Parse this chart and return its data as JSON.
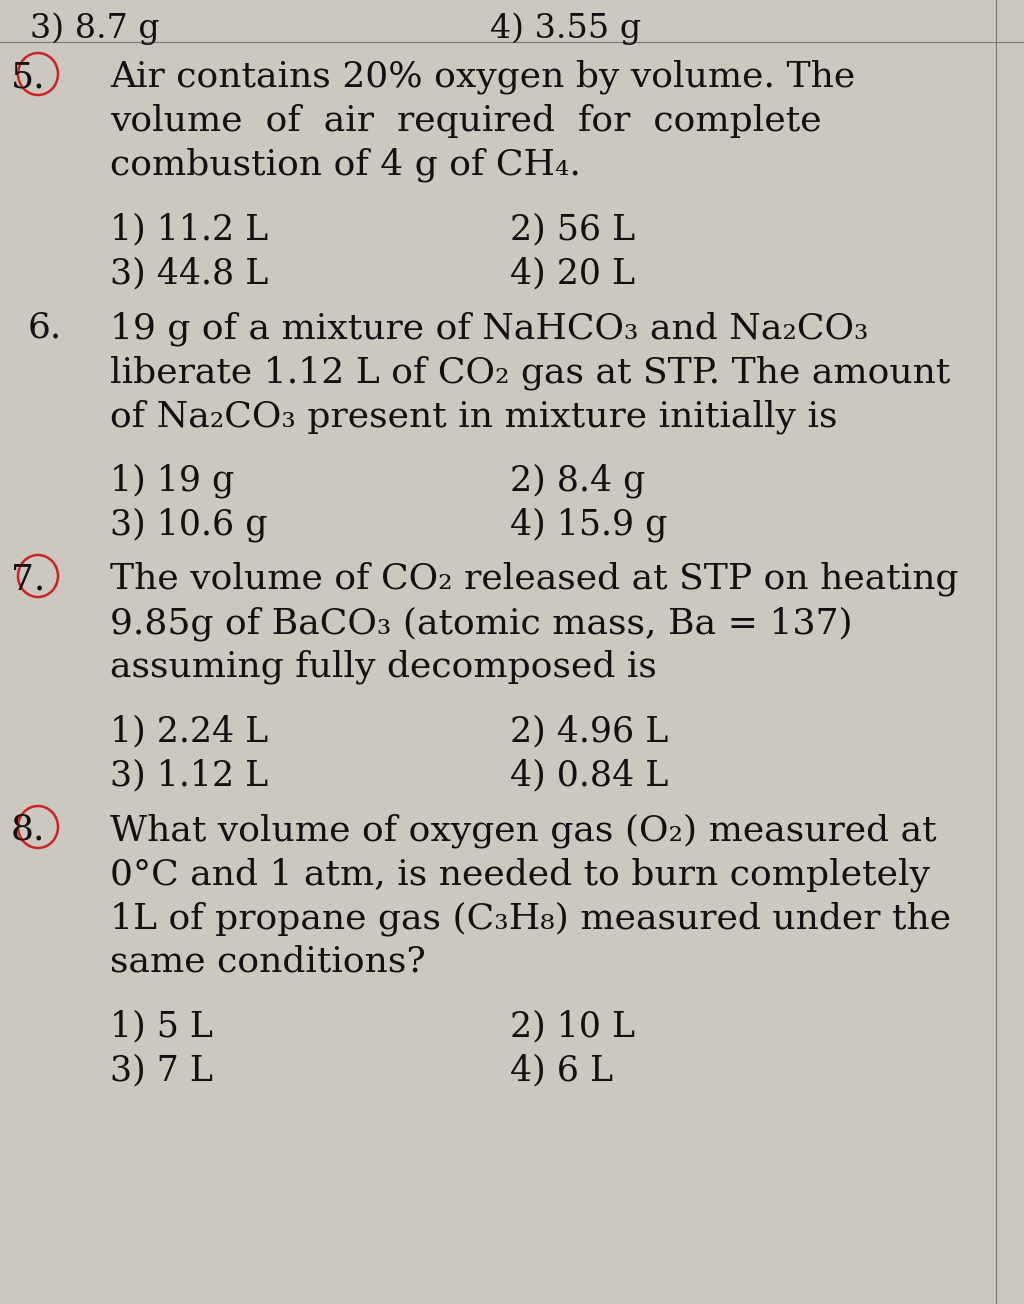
{
  "bg_color": "#ccc8c0",
  "text_color": "#111111",
  "font_size_q": 26,
  "font_size_opt": 25,
  "font_size_top": 24,
  "circle_color": "#cc2222",
  "fig_w": 10.24,
  "fig_h": 13.04,
  "dpi": 100,
  "top_line1_left": "3) 8.7 g",
  "top_line1_right": "4) 3.55 g",
  "q5_num": "5.",
  "q5_lines": [
    "Air contains 20% oxygen by volume. The",
    "volume  of  air  required  for  complete",
    "combustion of 4 g of CH₄."
  ],
  "q5_opt1": "1) 11.2 L",
  "q5_opt2": "2) 56 L",
  "q5_opt3": "3) 44.8 L",
  "q5_opt4": "4) 20 L",
  "q6_num": "6.",
  "q6_lines": [
    "19 g of a mixture of NaHCO₃ and Na₂CO₃",
    "liberate 1.12 L of CO₂ gas at STP. The amount",
    "of Na₂CO₃ present in mixture initially is"
  ],
  "q6_opt1": "1) 19 g",
  "q6_opt2": "2) 8.4 g",
  "q6_opt3": "3) 10.6 g",
  "q6_opt4": "4) 15.9 g",
  "q7_num": "7.",
  "q7_lines": [
    "The volume of CO₂ released at STP on heating",
    "9.85g of BaCO₃ (atomic mass, Ba = 137)",
    "assuming fully decomposed is"
  ],
  "q7_opt1": "1) 2.24 L",
  "q7_opt2": "2) 4.96 L",
  "q7_opt3": "3) 1.12 L",
  "q7_opt4": "4) 0.84 L",
  "q8_num": "8.",
  "q8_lines": [
    "What volume of oxygen gas (O₂) measured at",
    "0°C and 1 atm, is needed to burn completely",
    "1L of propane gas (C₃H₈) measured under the",
    "same conditions?"
  ],
  "q8_opt1": "1) 5 L",
  "q8_opt2": "2) 10 L",
  "q8_opt3": "3) 7 L",
  "q8_opt4": "4) 6 L"
}
